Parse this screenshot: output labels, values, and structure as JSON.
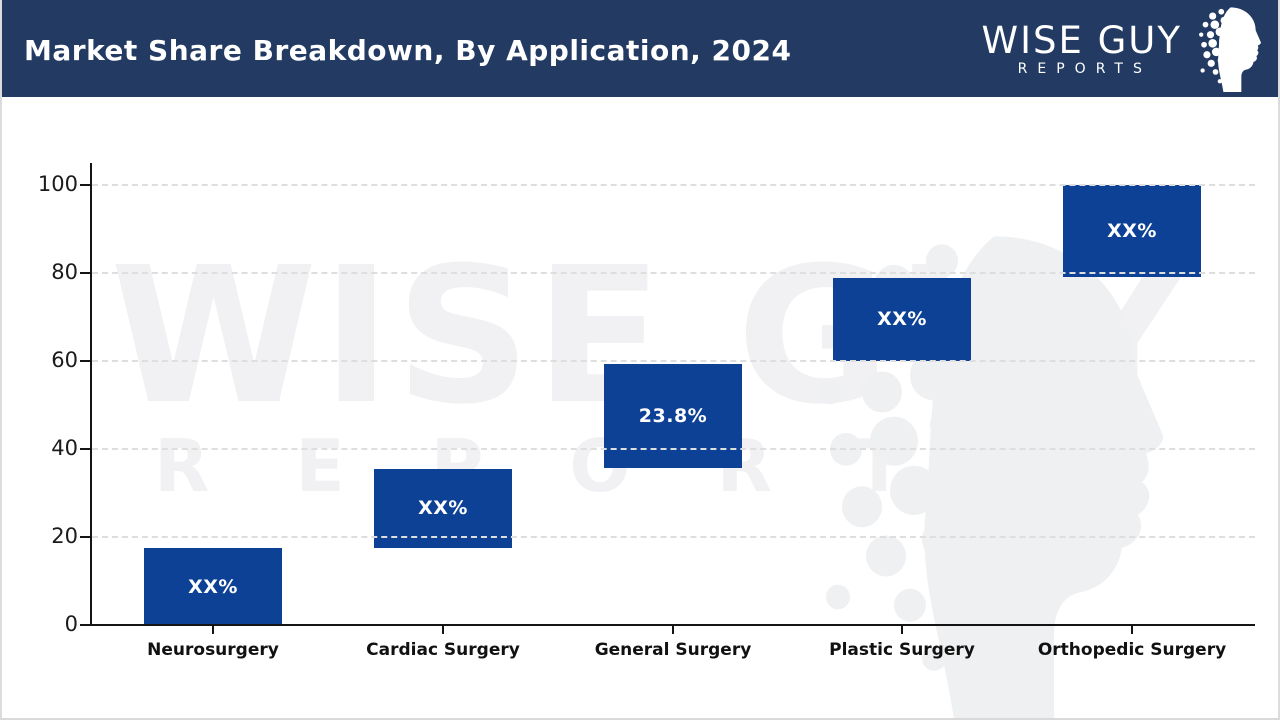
{
  "header": {
    "title": "Market Share Breakdown, By Application, 2024",
    "logo": {
      "name": "WISE GUY",
      "sub": "REPORTS"
    }
  },
  "watermark": {
    "line1": "WISE GUY",
    "line2": "REPORTS"
  },
  "chart_data": {
    "type": "bar",
    "variant": "waterfall",
    "title": "Market Share Breakdown, By Application, 2024",
    "categories": [
      "Neurosurgery",
      "Cardiac Surgery",
      "General Surgery",
      "Plastic Surgery",
      "Orthopedic Surgery"
    ],
    "segments": [
      {
        "category": "Neurosurgery",
        "start": 0,
        "end": 17.5,
        "label": "XX%"
      },
      {
        "category": "Cardiac Surgery",
        "start": 17.5,
        "end": 35.5,
        "label": "XX%"
      },
      {
        "category": "General Surgery",
        "start": 35.6,
        "end": 59.4,
        "label": "23.8%",
        "value": 23.8
      },
      {
        "category": "Plastic Surgery",
        "start": 60.0,
        "end": 78.9,
        "label": "XX%"
      },
      {
        "category": "Orthopedic Surgery",
        "start": 79.0,
        "end": 100.0,
        "label": "XX%"
      }
    ],
    "xlabel": "",
    "ylabel": "",
    "yticks": [
      0,
      20,
      40,
      60,
      80,
      100
    ],
    "ylim": [
      0,
      105
    ],
    "grid": "horizontal-dashed",
    "legend": "none",
    "bar_color": "#0c4195"
  },
  "colors": {
    "header_bg": "#233a63",
    "bar": "#0c4195",
    "grid": "#dedede",
    "axis": "#141414",
    "watermark": "#f1f1f3"
  }
}
